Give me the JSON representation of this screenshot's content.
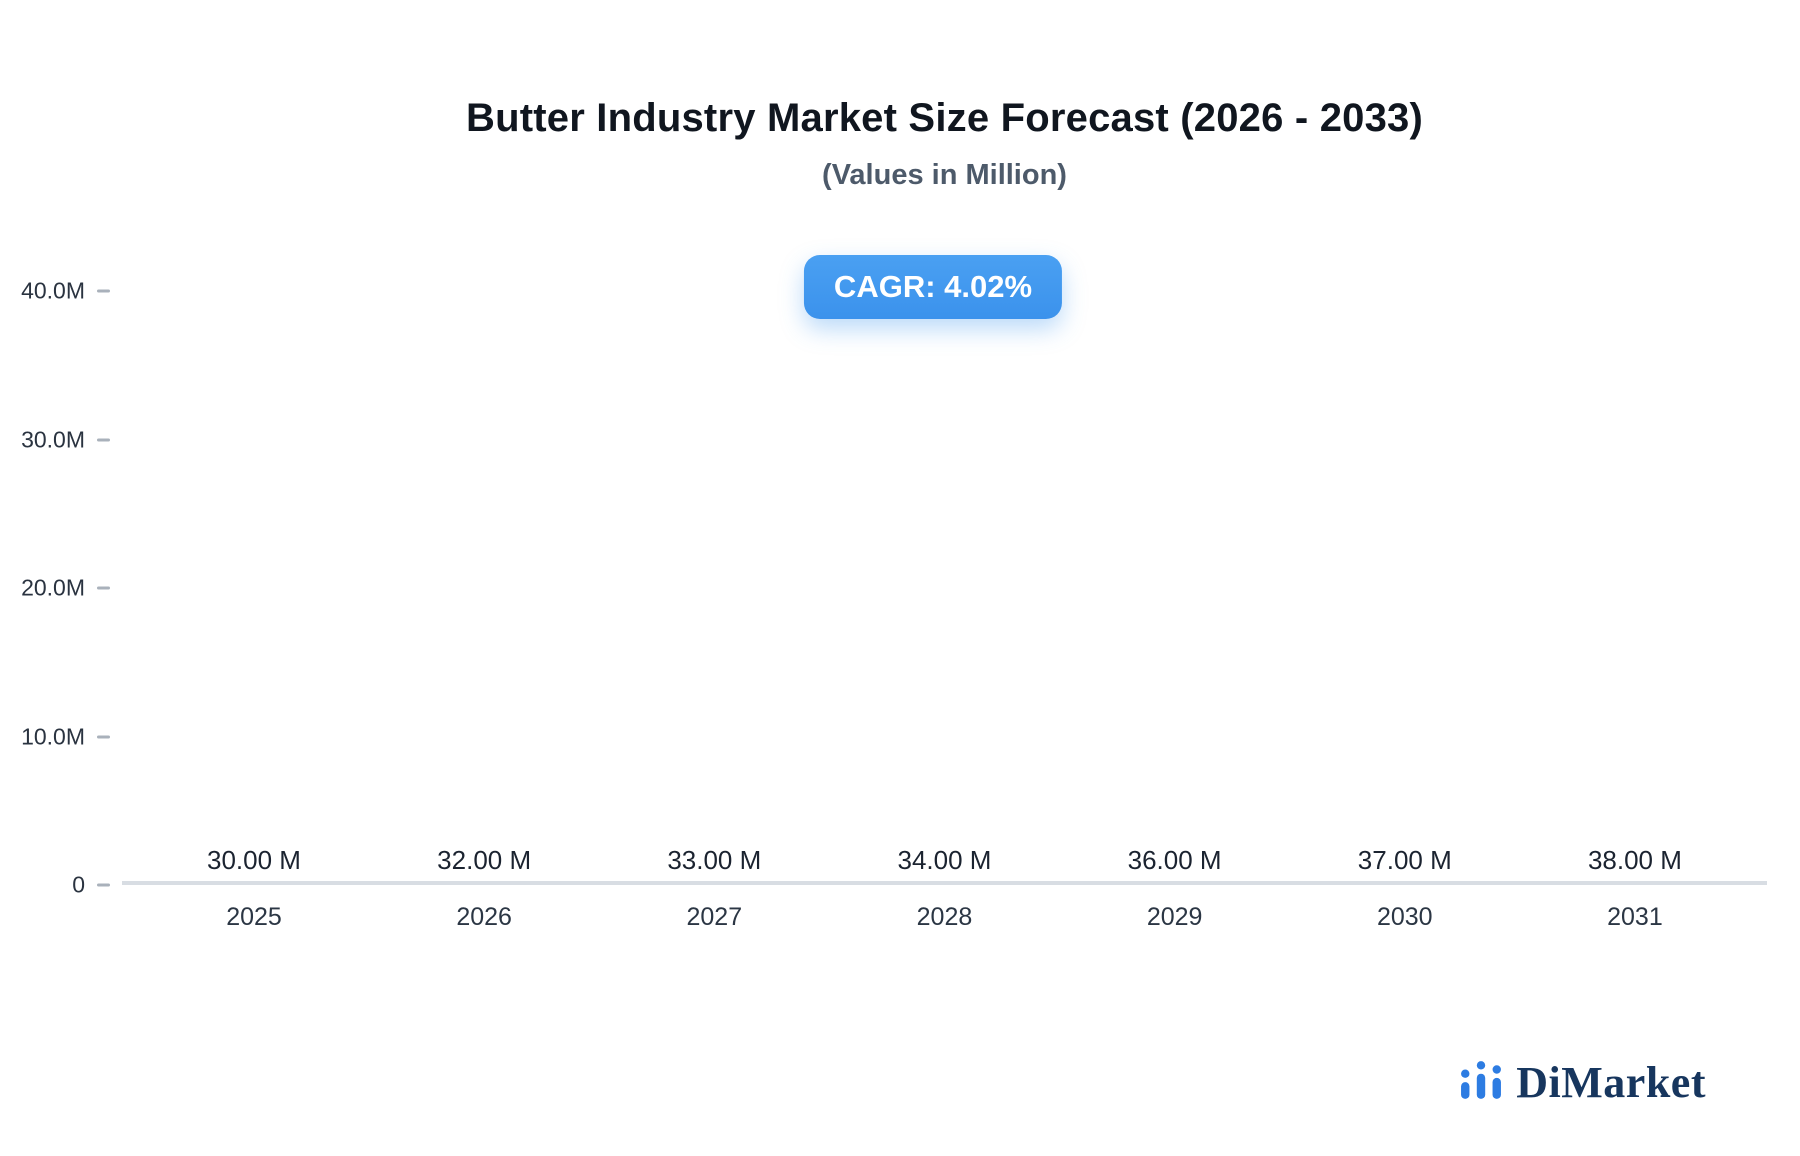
{
  "badge": {
    "label": "CAGR: 4.02%"
  },
  "chart_data": {
    "type": "bar",
    "title": "Butter Industry Market Size Forecast (2026 - 2033)",
    "subtitle": "(Values in Million)",
    "categories": [
      "2025",
      "2026",
      "2027",
      "2028",
      "2029",
      "2030",
      "2031"
    ],
    "values": [
      30,
      32,
      33,
      34,
      36,
      37,
      38
    ],
    "bar_labels": [
      "30.00 M",
      "32.00 M",
      "33.00 M",
      "34.00 M",
      "36.00 M",
      "37.00 M",
      "38.00 M"
    ],
    "xlabel": "",
    "ylabel": "",
    "ylim": [
      0,
      40
    ],
    "grid": false,
    "legend": false,
    "y_ticks": [
      {
        "value": 40,
        "label": "40.0M"
      },
      {
        "value": 30,
        "label": "30.0M"
      },
      {
        "value": 20,
        "label": "20.0M"
      },
      {
        "value": 10,
        "label": "10.0M"
      },
      {
        "value": 0,
        "label": "0"
      }
    ]
  },
  "colors": {
    "bar_fill": "#4198ee",
    "bar_side": "#2a70c2",
    "badge_bg": "#3b92ec",
    "axis_line": "#d8dde3",
    "logo_text": "#17365e",
    "logo_icon": "#2d7ce2"
  },
  "logo": {
    "name": "DiMarket"
  }
}
